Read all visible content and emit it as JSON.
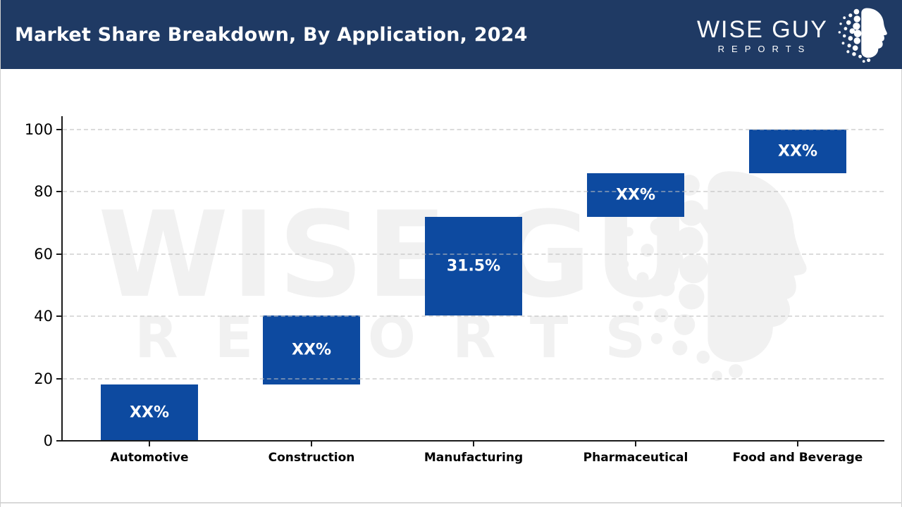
{
  "header": {
    "title": "Market Share Breakdown, By Application, 2024",
    "bg_color": "#1f3a64",
    "logo": {
      "line1": "WISE GUY",
      "line2": "REPORTS"
    }
  },
  "watermark": {
    "line1": "WISE GUY",
    "line2": "REPORTS"
  },
  "chart_data": {
    "type": "bar",
    "subtype": "waterfall",
    "title": "Market Share Breakdown, By Application, 2024",
    "categories": [
      "Automotive",
      "Construction",
      "Manufacturing",
      "Pharmaceutical",
      "Food and Beverage"
    ],
    "segments": [
      {
        "category": "Automotive",
        "start": 0,
        "end": 18,
        "label": "XX%"
      },
      {
        "category": "Construction",
        "start": 18,
        "end": 40.3,
        "label": "XX%"
      },
      {
        "category": "Manufacturing",
        "start": 40.3,
        "end": 71.8,
        "label": "31.5%"
      },
      {
        "category": "Pharmaceutical",
        "start": 71.8,
        "end": 85.9,
        "label": "XX%"
      },
      {
        "category": "Food and Beverage",
        "start": 85.9,
        "end": 100,
        "label": "XX%"
      }
    ],
    "yticks": [
      0,
      20,
      40,
      60,
      80,
      100
    ],
    "ylim": [
      0,
      104
    ],
    "xlabel": "",
    "ylabel": "",
    "grid": true,
    "grid_style": "dashed",
    "legend": false,
    "bar_color": "#0d4aa0",
    "bar_label_color": "#ffffff",
    "axis_color": "#1a1a1a",
    "gridline_color": "#c8c8c8",
    "watermark_color": "#f1f1f1"
  }
}
